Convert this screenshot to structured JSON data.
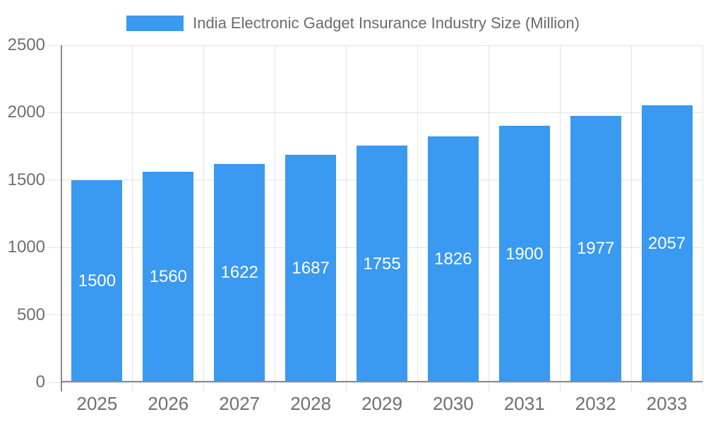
{
  "page": {
    "background": "#ffffff"
  },
  "legend": {
    "label": "India Electronic Gadget Insurance Industry Size (Million)",
    "swatch_color": "#3a99f0"
  },
  "chart_data": {
    "type": "bar",
    "title": "India Electronic Gadget Insurance Industry Size (Million)",
    "categories": [
      "2025",
      "2026",
      "2027",
      "2028",
      "2029",
      "2030",
      "2031",
      "2032",
      "2033"
    ],
    "values": [
      1500,
      1560,
      1622,
      1687,
      1755,
      1826,
      1900,
      1977,
      2057
    ],
    "value_labels": [
      "1500",
      "1560",
      "1622",
      "1687",
      "1755",
      "1826",
      "1900",
      "1977",
      "2057"
    ],
    "xlabel": "",
    "ylabel": "",
    "ylim": [
      0,
      2500
    ],
    "ytick_step": 500,
    "ytick_labels": [
      "0",
      "500",
      "1000",
      "1500",
      "2000",
      "2500"
    ],
    "grid": true,
    "legend_position": "top-center",
    "value_label_position": "inside-middle",
    "colors": {
      "bar": "#3a99f0",
      "value_label": "#ffffff",
      "grid_line": "#e4e4e4",
      "axis_line": "#8b8b8b",
      "tick_label": "#6f6f6f",
      "legend_text": "#6b6b6b",
      "background": "#ffffff"
    }
  }
}
